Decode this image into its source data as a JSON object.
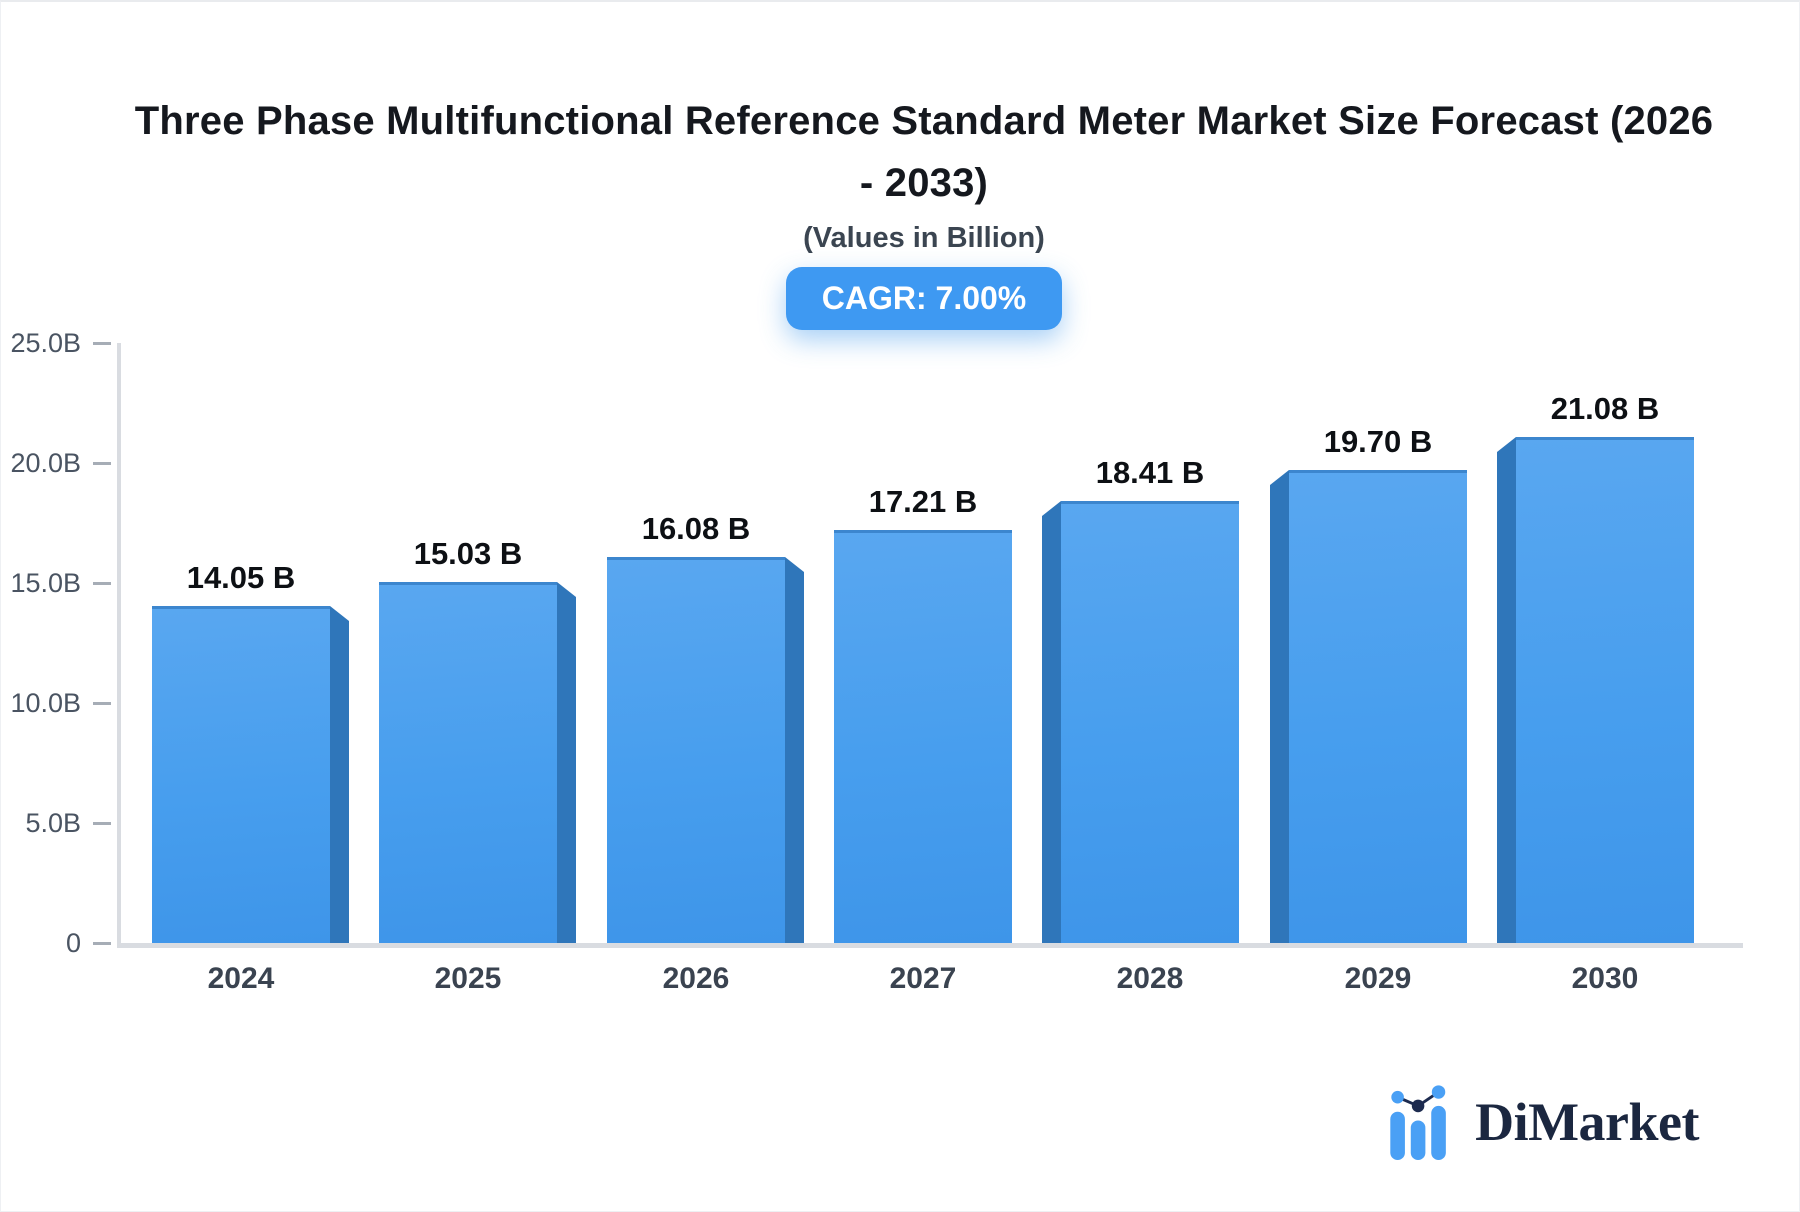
{
  "header": {
    "title": "Three Phase Multifunctional Reference Standard Meter Market Size Forecast (2026 - 2033)",
    "title_line1": "Three Phase Multifunctional Reference Standard Meter Market Size Forecast (2026",
    "title_line2": "- 2033)",
    "subtitle": "(Values in Billion)",
    "cagr_badge": "CAGR: 7.00%"
  },
  "chart_data": {
    "type": "bar",
    "title": "Three Phase Multifunctional Reference Standard Meter Market Size Forecast (2026 - 2033)",
    "subtitle": "(Values in Billion)",
    "cagr_percent": "7.00%",
    "unit": "Billion",
    "categories": [
      "2024",
      "2025",
      "2026",
      "2027",
      "2028",
      "2029",
      "2030"
    ],
    "values": [
      14.05,
      15.03,
      16.08,
      17.21,
      18.41,
      19.7,
      21.08
    ],
    "value_labels": [
      "14.05 B",
      "15.03 B",
      "16.08 B",
      "17.21 B",
      "18.41 B",
      "19.70 B",
      "21.08 B"
    ],
    "xlabel": "",
    "ylabel": "",
    "ylim": [
      0,
      25
    ],
    "yticks": [
      {
        "value": 0,
        "label": "0"
      },
      {
        "value": 5,
        "label": "5.0B"
      },
      {
        "value": 10,
        "label": "10.0B"
      },
      {
        "value": 15,
        "label": "15.0B"
      },
      {
        "value": 20,
        "label": "20.0B"
      },
      {
        "value": 25,
        "label": "25.0B"
      }
    ],
    "grid": false,
    "legend": false,
    "bar_style": "3d-perspective-center"
  },
  "colors": {
    "accent": "#3e99f2",
    "bar_front_top": "#59a7f0",
    "bar_front_bottom": "#3e95e9",
    "bar_side": "#2f76ba",
    "axis": "#d9dce1",
    "title_ink": "#15181e",
    "brand_navy": "#1b2740",
    "brand_blue": "#4aa0f5"
  },
  "footer": {
    "brand": "DiMarket"
  }
}
